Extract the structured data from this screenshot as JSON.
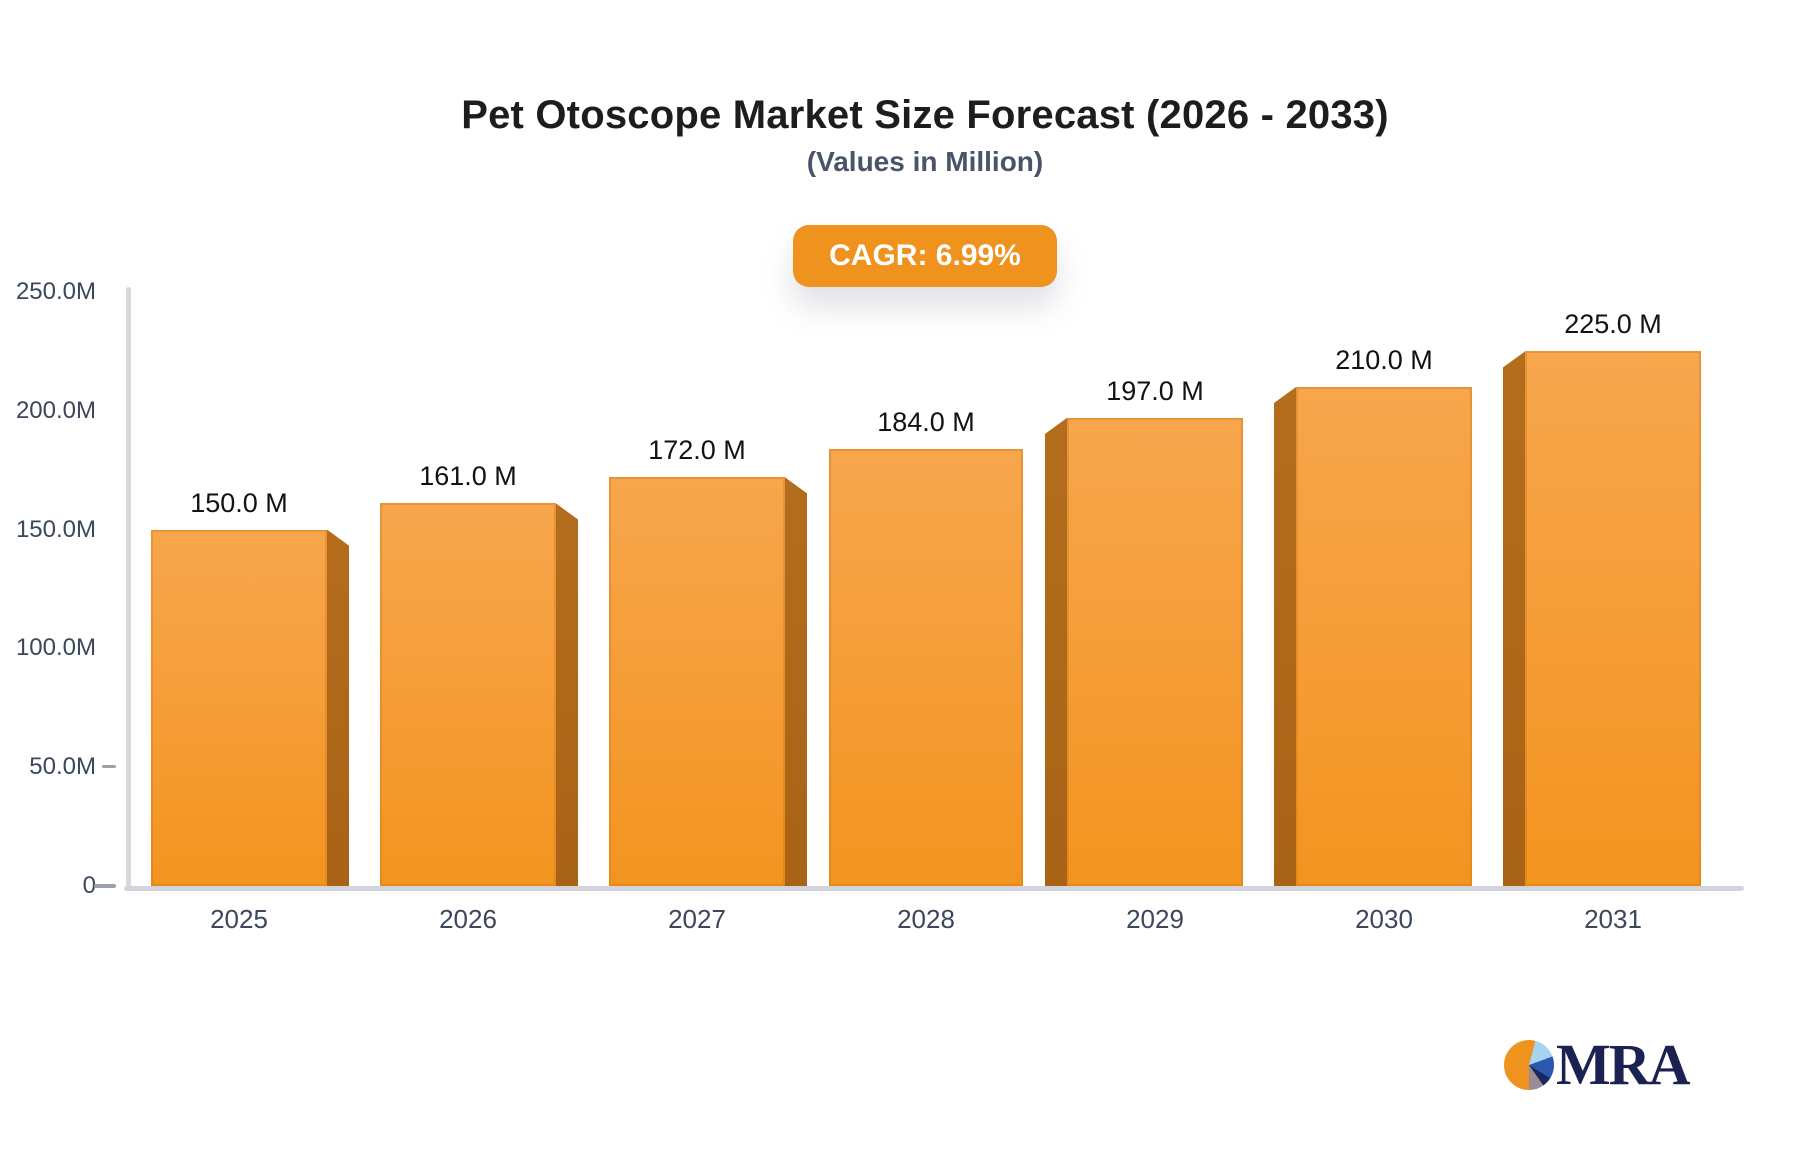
{
  "header": {
    "title": "Pet Otoscope Market Size Forecast (2026 - 2033)",
    "subtitle": "(Values in Million)",
    "cagr_label": "CAGR: 6.99%"
  },
  "logo": {
    "icon": "pie-chart-icon",
    "text": "MRA"
  },
  "colors": {
    "bar_face_top": "#f7a64d",
    "bar_face_bottom": "#f3941f",
    "bar_side": "#ad681b",
    "badge_background": "#f0921e",
    "badge_text": "#ffffff",
    "axis_line": "#d6d6de",
    "tick_label": "#3a475c",
    "value_label": "#121216",
    "title_text": "#1d1d20",
    "subtitle_text": "#4a5468",
    "logo_text": "#1b2150"
  },
  "chart_data": {
    "type": "bar",
    "title": "Pet Otoscope Market Size Forecast (2026 - 2033)",
    "subtitle": "(Values in Million)",
    "annotation": "CAGR: 6.99%",
    "categories": [
      "2025",
      "2026",
      "2027",
      "2028",
      "2029",
      "2030",
      "2031"
    ],
    "values": [
      150.0,
      161.0,
      172.0,
      184.0,
      197.0,
      210.0,
      225.0
    ],
    "value_labels": [
      "150.0 M",
      "161.0 M",
      "172.0 M",
      "184.0 M",
      "197.0 M",
      "210.0 M",
      "225.0 M"
    ],
    "xlabel": "",
    "ylabel": "",
    "ylim": [
      0,
      250
    ],
    "y_ticks": [
      {
        "label": "250.0M",
        "value": 250,
        "dash": false
      },
      {
        "label": "200.0M",
        "value": 200,
        "dash": false
      },
      {
        "label": "150.0M",
        "value": 150,
        "dash": false
      },
      {
        "label": "100.0M",
        "value": 100,
        "dash": false
      },
      {
        "label": "50.0M",
        "value": 50,
        "dash": true
      },
      {
        "label": "0",
        "value": 0,
        "dash": true
      }
    ],
    "grid": false,
    "legend": false,
    "bar_style": "3d-bevel"
  }
}
